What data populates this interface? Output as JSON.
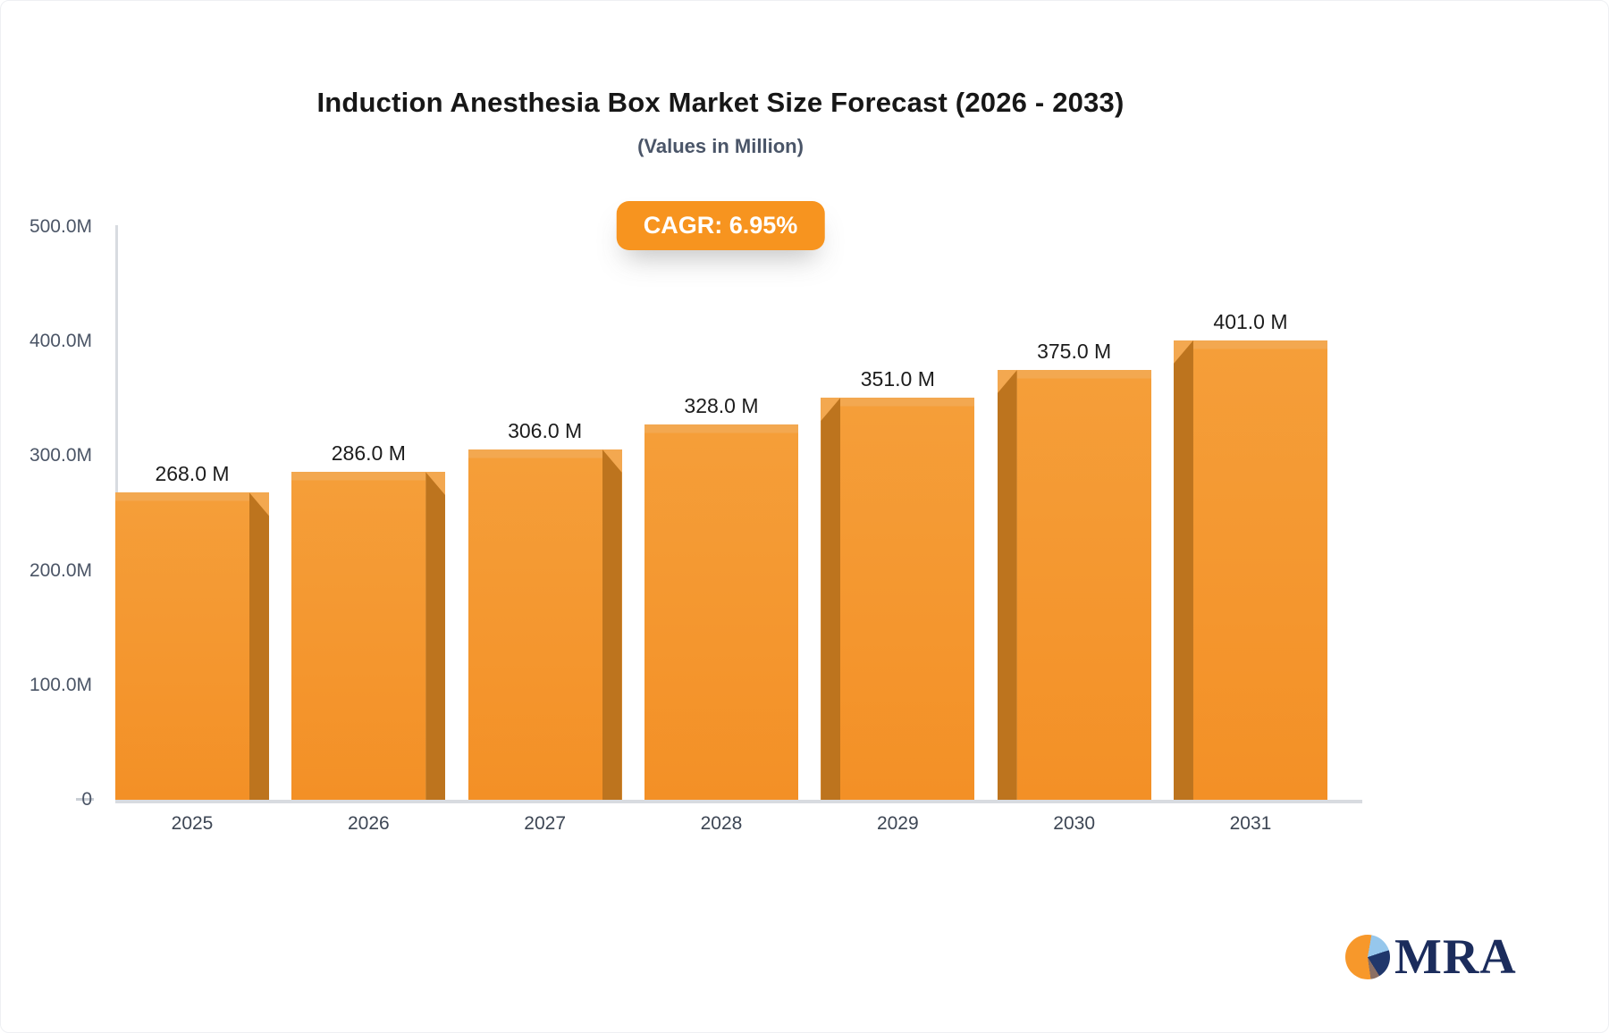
{
  "header": {
    "title": "Induction Anesthesia Box Market Size Forecast (2026 - 2033)",
    "subtitle": "(Values in Million)",
    "cagr_badge": "CAGR: 6.95%"
  },
  "chart_data": {
    "type": "bar",
    "categories": [
      "2025",
      "2026",
      "2027",
      "2028",
      "2029",
      "2030",
      "2031"
    ],
    "values": [
      268,
      286,
      306,
      328,
      351,
      375,
      401
    ],
    "bar_labels": [
      "268.0 M",
      "286.0 M",
      "306.0 M",
      "328.0 M",
      "351.0 M",
      "375.0 M",
      "401.0 M"
    ],
    "y_axis": [
      {
        "label": "500.0M",
        "value": 500
      },
      {
        "label": "400.0M",
        "value": 400
      },
      {
        "label": "300.0M",
        "value": 300
      },
      {
        "label": "200.0M",
        "value": 200
      },
      {
        "label": "100.0M",
        "value": 100
      },
      {
        "label": "0",
        "value": 0
      }
    ],
    "ylim": [
      0,
      500
    ],
    "grid": false,
    "legend": "none",
    "unit": "Million"
  },
  "colors": {
    "bar_top_band": "#f3a850",
    "bar_body_mid": "#f59e39",
    "bar_body_bottom": "#f39026",
    "bar_side_dark": "#bd741e",
    "badge_background": "#f7941f",
    "badge_text": "#ffffff",
    "axis_line": "#d8dbe0",
    "logo_orange": "#f7982b",
    "logo_light_blue": "#96c7ec",
    "logo_navy": "#20376b",
    "logo_brown": "#8b6f63",
    "logo_text_navy": "#1b2c5c"
  },
  "logo": {
    "text": "MRA"
  }
}
